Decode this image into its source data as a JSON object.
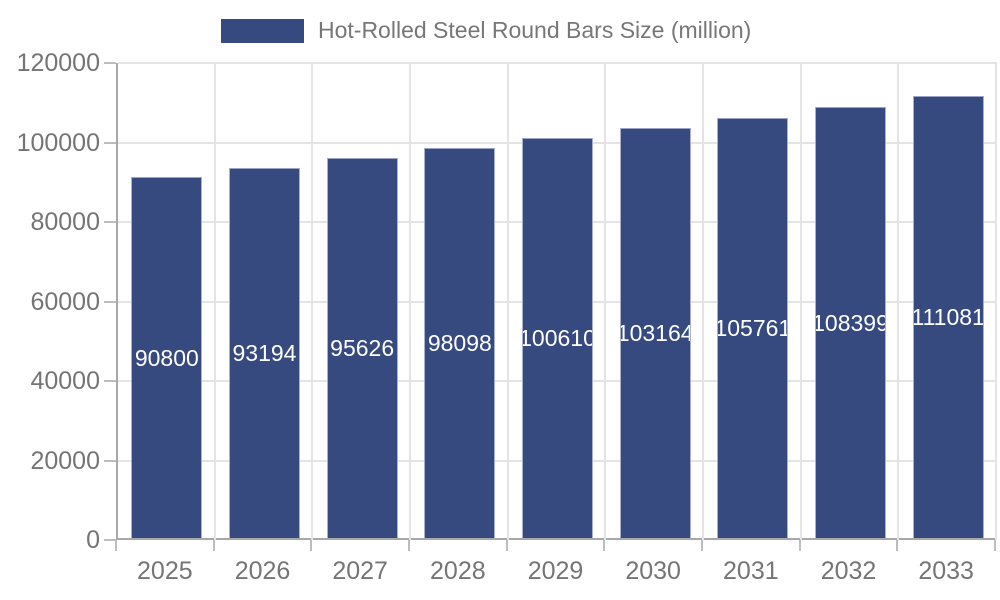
{
  "legend": {
    "label": "Hot-Rolled Steel Round Bars Size (million)"
  },
  "colors": {
    "bar": "#374a80",
    "bar_label_text": "#ffffff",
    "axis_label_text": "#757575",
    "legend_text": "#777777",
    "gridline": "#e4e4e4",
    "axis_line": "#a8a8a8",
    "background": "#ffffff"
  },
  "chart_data": {
    "type": "bar",
    "title": "Hot-Rolled Steel Round Bars Size (million)",
    "categories": [
      "2025",
      "2026",
      "2027",
      "2028",
      "2029",
      "2030",
      "2031",
      "2032",
      "2033"
    ],
    "values": [
      90800,
      93194,
      95626,
      98098,
      100610,
      103164,
      105761,
      108399,
      111081
    ],
    "bar_value_labels": [
      "90800",
      "93194",
      "95626",
      "98098",
      "100610",
      "103164",
      "105761",
      "108399",
      "111081"
    ],
    "xlabel": "",
    "ylabel": "",
    "ylim": [
      0,
      120000
    ],
    "yticks": [
      0,
      20000,
      40000,
      60000,
      80000,
      100000,
      120000
    ],
    "ytick_labels": [
      "0",
      "20000",
      "40000",
      "60000",
      "80000",
      "100000",
      "120000"
    ],
    "grid": true,
    "legend_position": "top",
    "value_labels_position": "inside-center"
  }
}
